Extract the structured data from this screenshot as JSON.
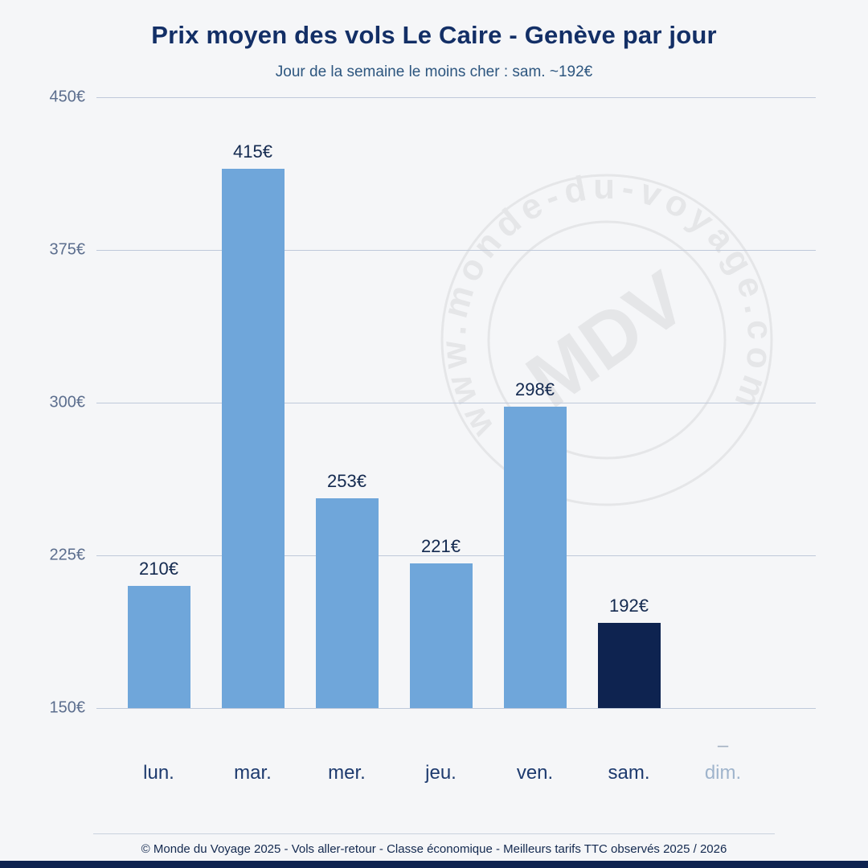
{
  "header": {
    "title": "Prix moyen des vols Le Caire - Genève par jour",
    "subtitle": "Jour de la semaine le moins cher : sam. ~192€"
  },
  "chart_data": {
    "type": "bar",
    "title": "Prix moyen des vols Le Caire - Genève par jour",
    "categories": [
      "lun.",
      "mar.",
      "mer.",
      "jeu.",
      "ven.",
      "sam.",
      "dim."
    ],
    "values": [
      210,
      415,
      253,
      221,
      298,
      192,
      null
    ],
    "bar_labels": [
      "210€",
      "415€",
      "253€",
      "221€",
      "298€",
      "192€",
      "–"
    ],
    "ylim": [
      150,
      450
    ],
    "yticks": [
      150,
      225,
      300,
      375,
      450
    ],
    "ytick_labels": [
      "150€",
      "225€",
      "300€",
      "375€",
      "450€"
    ],
    "grid": true,
    "legend": "none",
    "bar_color": "#6fa6da",
    "highlight_index": 5,
    "highlight_color": "#0e2350",
    "no_data_index": 6
  },
  "watermark": {
    "circle_text": "www.monde-du-voyage.com",
    "center_text": "MDV"
  },
  "footer": {
    "text": "© Monde du Voyage 2025 - Vols aller-retour - Classe économique - Meilleurs tarifs TTC observés 2025 / 2026"
  }
}
